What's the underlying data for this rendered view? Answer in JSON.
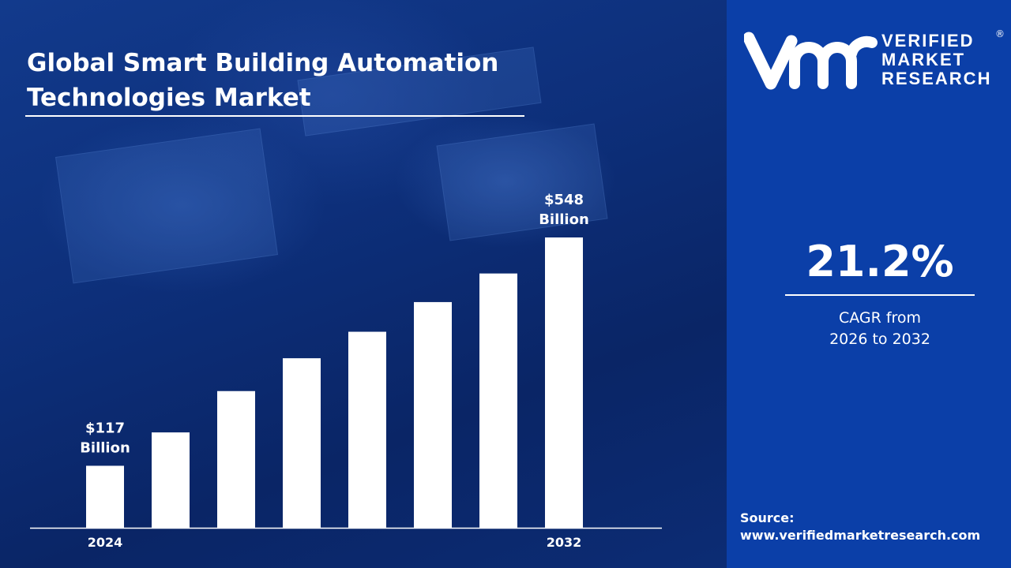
{
  "title_line1": "Global Smart Building Automation",
  "title_line2": "Technologies Market",
  "chart_data": {
    "type": "bar",
    "title": "Global Smart Building Automation Technologies Market",
    "categories": [
      "2024",
      "",
      "",
      "",
      "",
      "",
      "",
      "2032"
    ],
    "values": [
      117,
      180,
      258,
      320,
      370,
      426,
      480,
      548
    ],
    "unit": "$ Billion",
    "data_labels": [
      {
        "index": 0,
        "line1": "$117",
        "line2": "Billion"
      },
      {
        "index": 7,
        "line1": "$548",
        "line2": "Billion"
      }
    ],
    "ylim": [
      0,
      548
    ],
    "grid": false,
    "bar_color": "#ffffff"
  },
  "brand": {
    "line1": "VERIFIED",
    "line2": "MARKET",
    "line3": "RESEARCH",
    "registered": "®"
  },
  "cagr": {
    "value": "21.2%",
    "line1": "CAGR from",
    "line2": "2026 to 2032"
  },
  "source": {
    "label": "Source:",
    "url": "www.verifiedmarketresearch.com"
  },
  "colors": {
    "panel": "#0b3fa8",
    "background": "#0b2a6e",
    "bars": "#ffffff"
  }
}
